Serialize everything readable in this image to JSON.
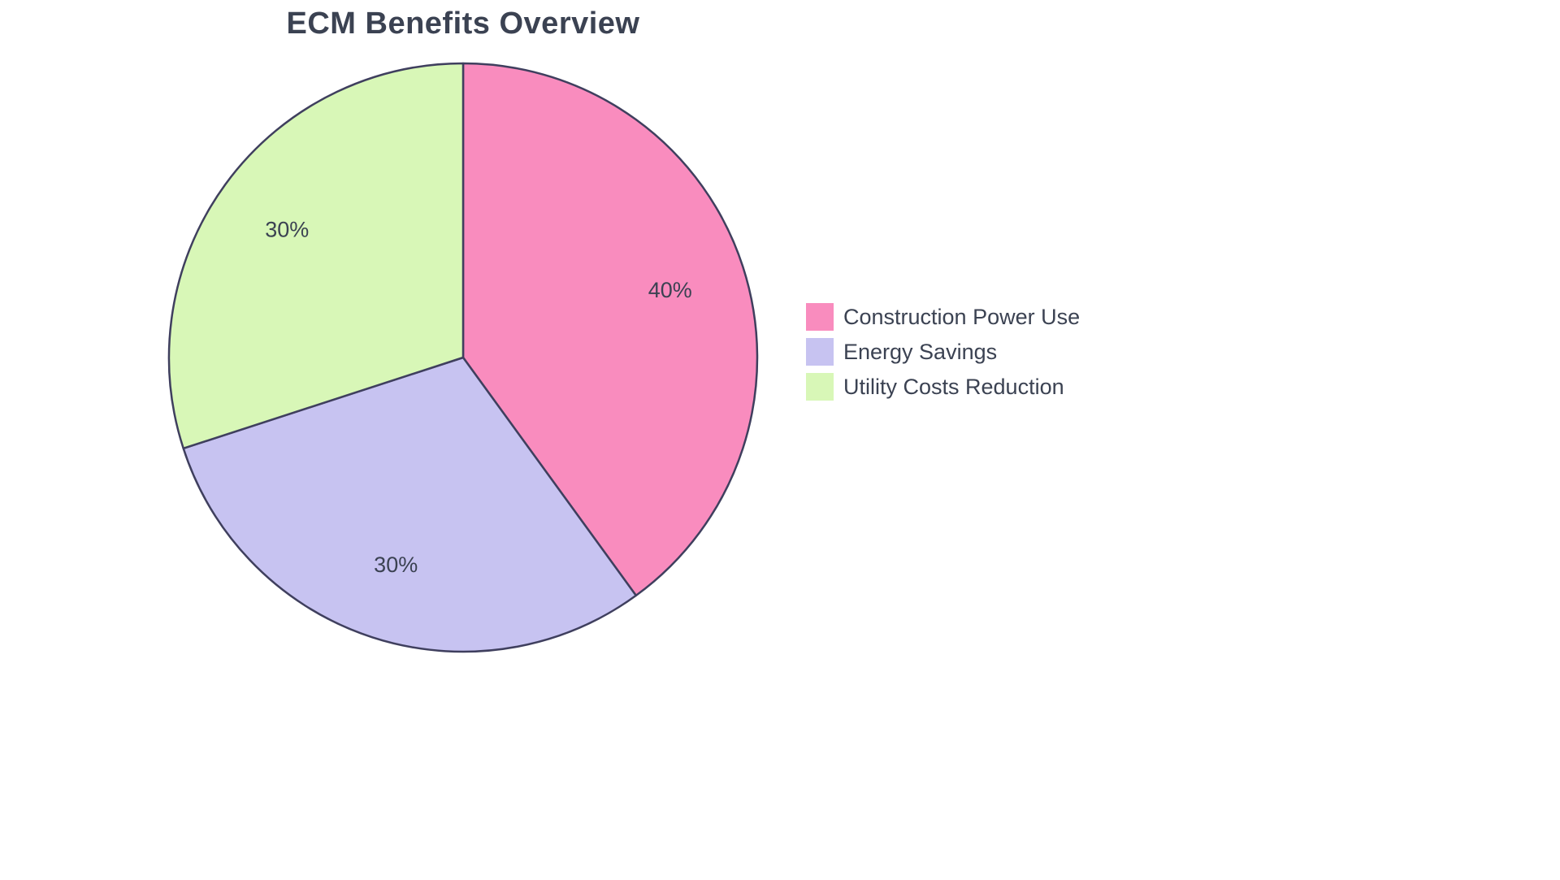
{
  "chart_data": {
    "type": "pie",
    "title": "ECM Benefits Overview",
    "labels": [
      "Construction Power Use",
      "Energy Savings",
      "Utility Costs Reduction"
    ],
    "values": [
      40,
      30,
      30
    ],
    "percent_labels": [
      "40%",
      "30%",
      "30%"
    ],
    "colors": [
      "#F98CBE",
      "#C7C3F1",
      "#D8F7B7"
    ],
    "stroke_color": "#3F3F5E",
    "text_color": "#3B4252",
    "background": "#FFFFFF",
    "start_angle": "top",
    "direction": "clockwise",
    "legend_position": "right",
    "grid": false
  }
}
